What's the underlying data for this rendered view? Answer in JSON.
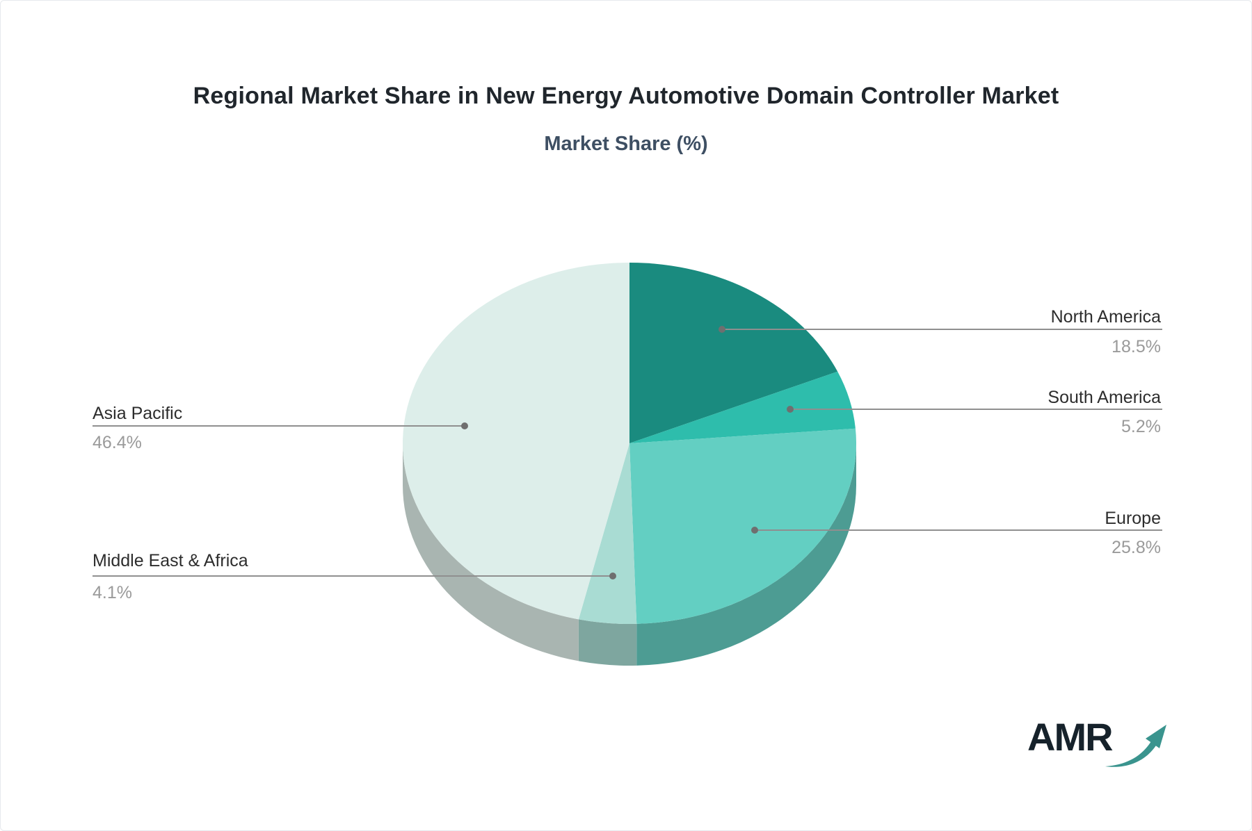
{
  "title": "Regional Market Share in New Energy Automotive Domain Controller Market",
  "subtitle": "Market Share (%)",
  "logo": {
    "text": "AMR"
  },
  "chart_data": {
    "type": "pie",
    "title": "Regional Market Share in New Energy Automotive Domain Controller Market",
    "subtitle": "Market Share (%)",
    "unit": "%",
    "start_angle": "12-oclock",
    "direction": "clockwise",
    "style": "3d-depth-pie",
    "legend_position": "callout-labels",
    "series": [
      {
        "name": "North America",
        "value": 18.5,
        "display_value": "18.5%",
        "color": "#1a8b7f",
        "depth_color": "#48958b",
        "label_side": "right"
      },
      {
        "name": "South America",
        "value": 5.2,
        "display_value": "5.2%",
        "color": "#2ebdac",
        "depth_color": "#51a196",
        "label_side": "right"
      },
      {
        "name": "Europe",
        "value": 25.8,
        "display_value": "25.8%",
        "color": "#63cfc2",
        "depth_color": "#4d9c93",
        "label_side": "right"
      },
      {
        "name": "Middle East & Africa",
        "value": 4.1,
        "display_value": "4.1%",
        "color": "#a9dcd3",
        "depth_color": "#7ea69f",
        "label_side": "left"
      },
      {
        "name": "Asia Pacific",
        "value": 46.4,
        "display_value": "46.4%",
        "color": "#ddeeea",
        "depth_color": "#a9b5b1",
        "label_side": "left"
      }
    ],
    "colors": {
      "label_name": "#2d2d2d",
      "label_value": "#9a9a9a",
      "leader_line": "#8f8f8f",
      "leader_dot": "#6f6f6f"
    }
  }
}
